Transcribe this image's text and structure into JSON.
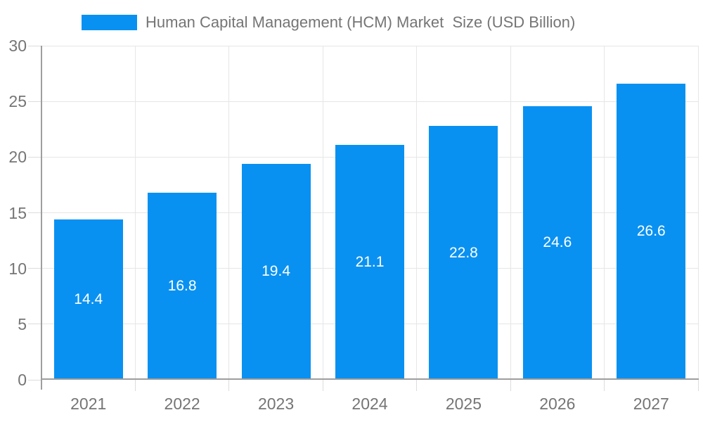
{
  "chart_data": {
    "type": "bar",
    "title": "Human Capital Management (HCM) Market  Size (USD Billion)",
    "categories": [
      "2021",
      "2022",
      "2023",
      "2024",
      "2025",
      "2026",
      "2027"
    ],
    "values": [
      14.4,
      16.8,
      19.4,
      21.1,
      22.8,
      24.6,
      26.6
    ],
    "value_labels": [
      "14.4",
      "16.8",
      "19.4",
      "21.1",
      "22.8",
      "24.6",
      "26.6"
    ],
    "xlabel": "",
    "ylabel": "",
    "ylim": [
      0,
      30
    ],
    "ytick_step": 5,
    "ytick_labels": [
      "0",
      "5",
      "10",
      "15",
      "20",
      "25",
      "30"
    ],
    "grid": "both",
    "legend_position": "top-left",
    "colors": {
      "bar": "#0991f2",
      "bar_value_text": "#ffffff",
      "axis_text": "#757575",
      "gridline": "#e6e6e6",
      "tick": "#dcdcdc",
      "axis_line": "#9e9e9e",
      "background": "#ffffff"
    }
  }
}
